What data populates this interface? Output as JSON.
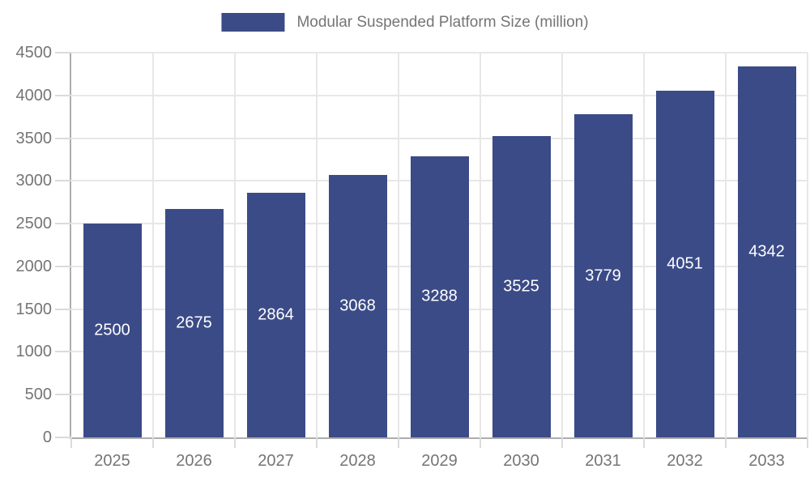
{
  "chart_data": {
    "type": "bar",
    "legend": "Modular Suspended Platform Size (million)",
    "legend_position": "top",
    "categories": [
      "2025",
      "2026",
      "2027",
      "2028",
      "2029",
      "2030",
      "2031",
      "2032",
      "2033"
    ],
    "values": [
      2500,
      2675,
      2864,
      3068,
      3288,
      3525,
      3779,
      4051,
      4342
    ],
    "ylim": [
      0,
      4500
    ],
    "ytick_step": 500,
    "yticks": [
      "0",
      "500",
      "1000",
      "1500",
      "2000",
      "2500",
      "3000",
      "3500",
      "4000",
      "4500"
    ],
    "grid": true,
    "colors": {
      "bar": "#3B4B87",
      "bar_label": "#FFFFFF",
      "axis_text": "#757575",
      "grid_line": "#E7E7E7",
      "axis_line": "#ADADAD",
      "tick_line": "#DBDBDB",
      "background": "#FFFFFF"
    }
  }
}
